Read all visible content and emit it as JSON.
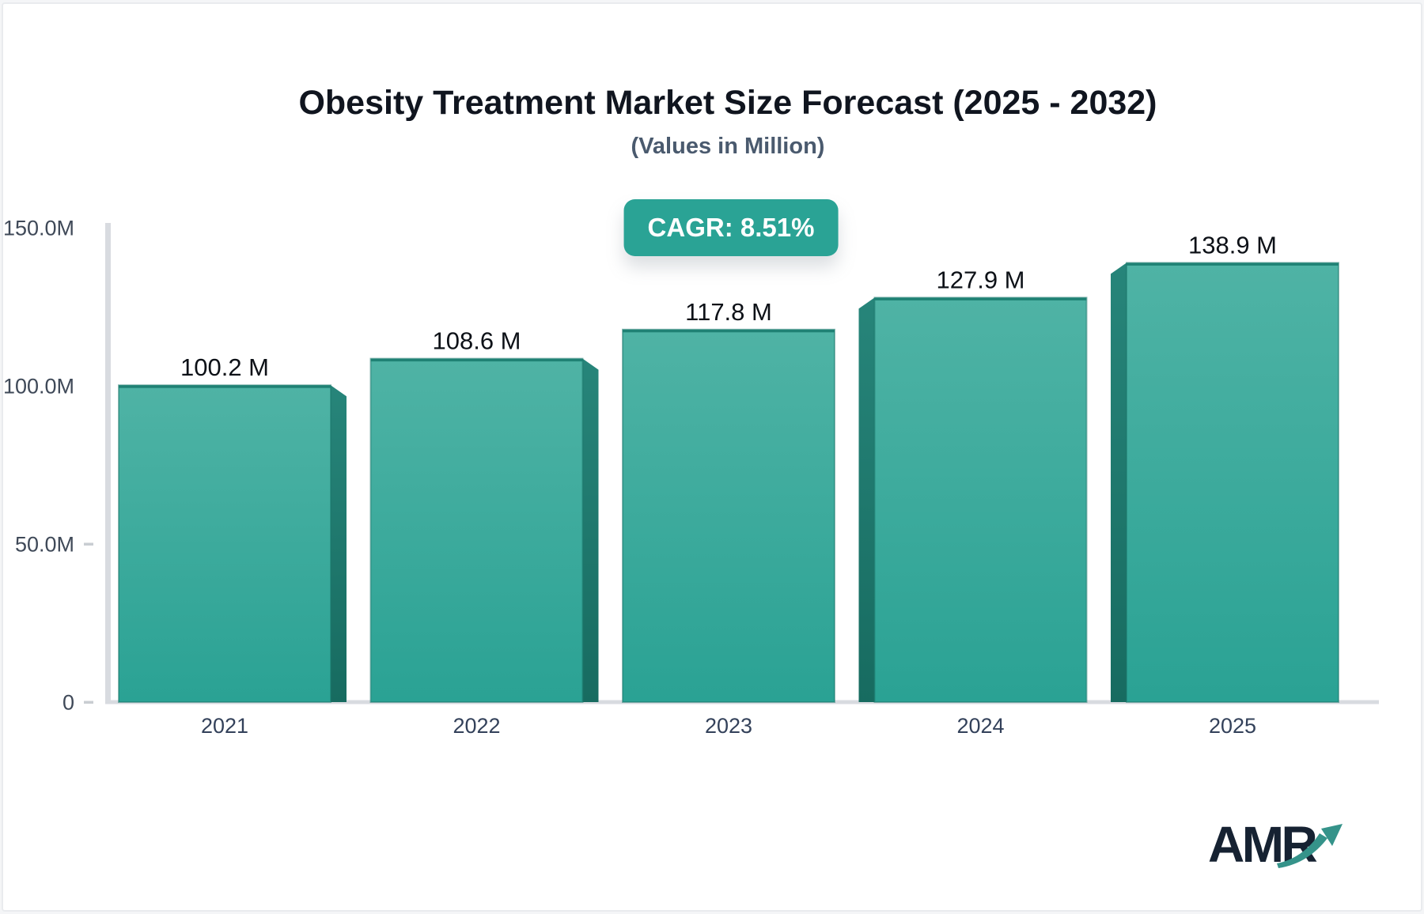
{
  "title": "Obesity Treatment Market Size Forecast (2025 - 2032)",
  "subtitle": "(Values in Million)",
  "badge": {
    "label": "CAGR: 8.51%",
    "bg_color": "#2aa395",
    "text_color": "#ffffff"
  },
  "logo": {
    "text": "AMR",
    "arrow_icon": "trend-up-arrow",
    "text_color": "#162232",
    "arrow_color": "#35938a"
  },
  "chart_data": {
    "type": "bar",
    "categories": [
      "2021",
      "2022",
      "2023",
      "2024",
      "2025"
    ],
    "values": [
      100.2,
      108.6,
      117.8,
      127.9,
      138.9
    ],
    "value_labels": [
      "100.2 M",
      "108.6 M",
      "117.8 M",
      "127.9 M",
      "138.9 M"
    ],
    "y_ticks": [
      "150.0M",
      "100.0M",
      "50.0M",
      "0"
    ],
    "y_tick_values": [
      150,
      100,
      50,
      0
    ],
    "ylim": [
      0,
      150
    ],
    "xlabel": "",
    "ylabel": "",
    "grid": false,
    "legend": false,
    "bar_color_top": "#4fb3a5",
    "bar_color_bottom": "#2aa294",
    "bar_side_top": "#27857a",
    "bar_side_bottom": "#176b60",
    "bar_top_edge": "#1f8174",
    "axis_color": "#d8dbe0",
    "tick_label_color": "#3f4958",
    "x_label_color": "#33415a",
    "value_label_color": "#0d1117"
  }
}
